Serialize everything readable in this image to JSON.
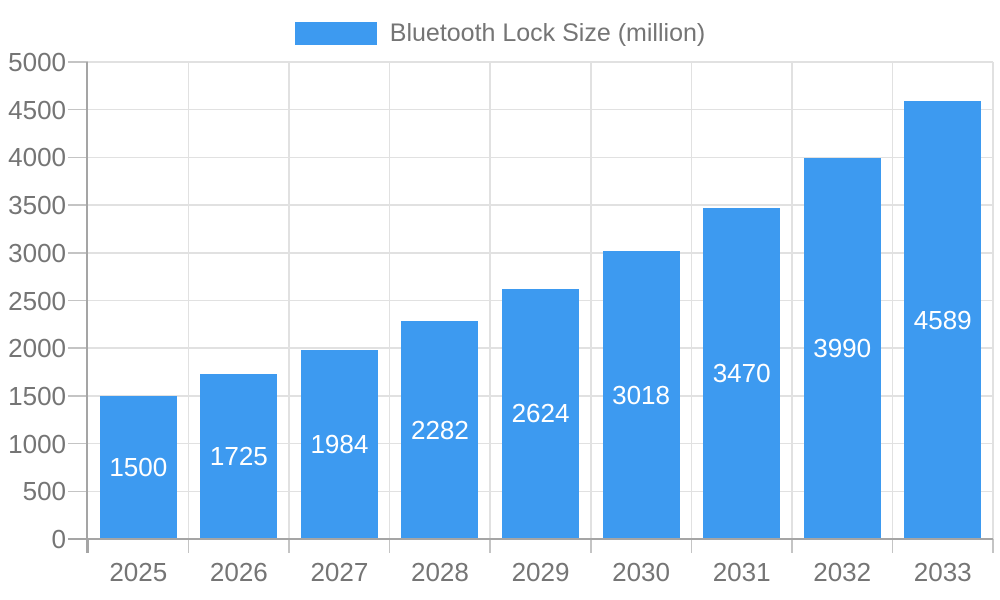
{
  "chart_data": {
    "type": "bar",
    "title": "Bluetooth Lock Size (million)",
    "legend": [
      "Bluetooth Lock Size (million)"
    ],
    "legend_position": "top",
    "categories": [
      "2025",
      "2026",
      "2027",
      "2028",
      "2029",
      "2030",
      "2031",
      "2032",
      "2033"
    ],
    "values": [
      1500,
      1725,
      1984,
      2282,
      2624,
      3018,
      3470,
      3990,
      4589
    ],
    "series": [
      {
        "name": "Bluetooth Lock Size (million)",
        "values": [
          1500,
          1725,
          1984,
          2282,
          2624,
          3018,
          3470,
          3990,
          4589
        ]
      }
    ],
    "xlabel": "",
    "ylabel": "",
    "ylim": [
      0,
      5000
    ],
    "ytick_step": 500,
    "yticks": [
      0,
      500,
      1000,
      1500,
      2000,
      2500,
      3000,
      3500,
      4000,
      4500,
      5000
    ],
    "grid": true,
    "bar_value_labels_inside": true,
    "colors": {
      "bar": "#3D9AF0",
      "bar_label": "#FFFFFF",
      "axis_text": "#757575",
      "gridline": "#E1E1E1",
      "axis_line": "#A5A5A5",
      "tick": "#C4C4C4",
      "background": "#FFFFFF"
    }
  }
}
